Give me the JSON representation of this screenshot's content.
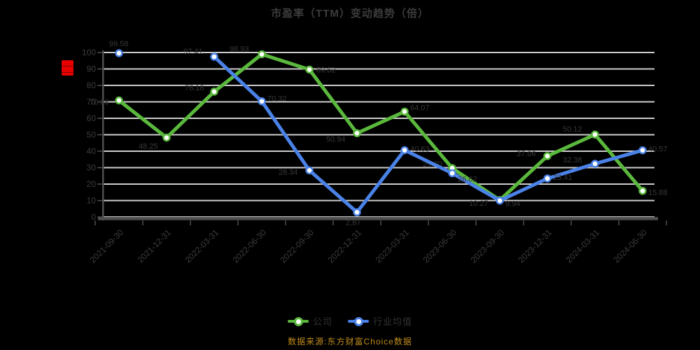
{
  "title": "市盈率（TTM）变动趋势（倍）",
  "watermark": "数据来源:东方财富Choice数据",
  "legend": {
    "items": [
      {
        "label": "公司",
        "color": "#5ab93c"
      },
      {
        "label": "行业均值",
        "color": "#4a82e8"
      }
    ]
  },
  "colors": {
    "company_line": "#5ab93c",
    "industry_line": "#4a82e8",
    "grid_line": "#cccccc",
    "axis_line": "#4f4f4f",
    "text_gray": "#3c3c3c",
    "data_label": "#383838",
    "red_glyph": "#e60000",
    "watermark_orange": "#bf8b1c",
    "marker_fill": "#ffffff"
  },
  "axes": {
    "y_ticks": [
      0,
      10,
      20,
      30,
      40,
      50,
      60,
      70,
      80,
      90,
      100
    ],
    "ylim": [
      0,
      100
    ],
    "grid": true
  },
  "chart_data": {
    "type": "line",
    "title": "市盈率（TTM）变动趋势（倍）",
    "xlabel": "",
    "ylabel": "",
    "ylim": [
      0,
      100
    ],
    "y_ticks": [
      0,
      10,
      20,
      30,
      40,
      50,
      60,
      70,
      80,
      90,
      100
    ],
    "grid": true,
    "legend_position": "bottom",
    "categories": [
      "2021-09-30",
      "2021-12-31",
      "2022-03-31",
      "2022-06-30",
      "2022-09-30",
      "2022-12-31",
      "2023-03-31",
      "2023-06-30",
      "2023-09-30",
      "2023-12-31",
      "2024-03-31",
      "2024-06-30"
    ],
    "series": [
      {
        "name": "公司",
        "color": "#5ab93c",
        "values": [
          70.86,
          48.25,
          76.18,
          98.93,
          89.62,
          50.94,
          64.07,
          29.7,
          10.27,
          37.06,
          50.12,
          15.88
        ]
      },
      {
        "name": "行业均值",
        "color": "#4a82e8",
        "values": [
          99.58,
          null,
          97.41,
          70.32,
          28.34,
          2.87,
          40.63,
          26.62,
          9.94,
          23.41,
          32.38,
          40.57
        ]
      }
    ]
  }
}
